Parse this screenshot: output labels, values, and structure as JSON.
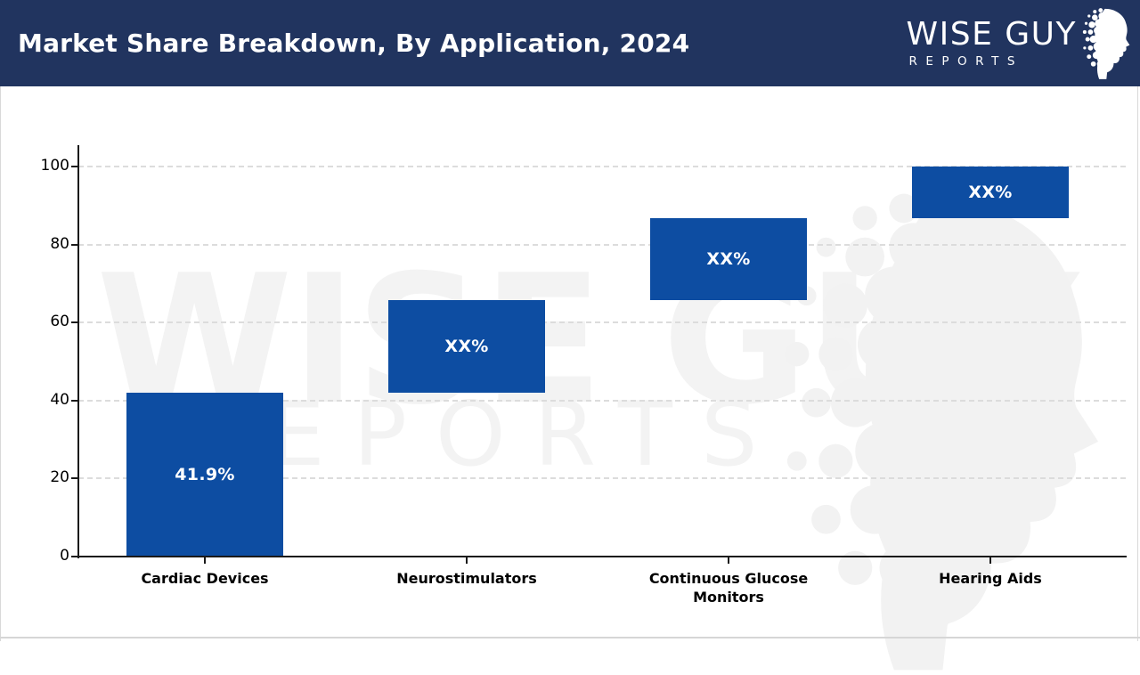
{
  "header": {
    "title": "Market Share Breakdown, By Application, 2024",
    "brand_line1": "WISE GUY",
    "brand_line2": "REPORTS"
  },
  "watermark": {
    "line1": "WISE GUY",
    "line2": "REPORTS"
  },
  "chart_data": {
    "type": "bar",
    "variant": "waterfall",
    "title": "Market Share Breakdown, By Application, 2024",
    "categories": [
      "Cardiac Devices",
      "Neurostimulators",
      "Continuous Glucose Monitors",
      "Hearing Aids"
    ],
    "segments": [
      {
        "category": "Cardiac Devices",
        "start": 0,
        "end": 41.9,
        "label": "41.9%"
      },
      {
        "category": "Neurostimulators",
        "start": 41.9,
        "end": 65.8,
        "label": "XX%"
      },
      {
        "category": "Continuous Glucose Monitors",
        "start": 65.8,
        "end": 86.8,
        "label": "XX%"
      },
      {
        "category": "Hearing Aids",
        "start": 86.8,
        "end": 100,
        "label": "XX%"
      }
    ],
    "ylim": [
      0,
      100
    ],
    "yticks": [
      0,
      20,
      40,
      60,
      80,
      100
    ],
    "xlabel": "",
    "ylabel": "",
    "legend": "none",
    "grid": {
      "horizontal": true,
      "style": "dashed"
    },
    "colors": {
      "bar": "#0d4da2",
      "bar_label_text": "#ffffff",
      "header_bg": "#21345f",
      "axis": "#1a1a1a",
      "gridline": "#dcdcdc",
      "watermark": "#f3f3f3"
    }
  }
}
